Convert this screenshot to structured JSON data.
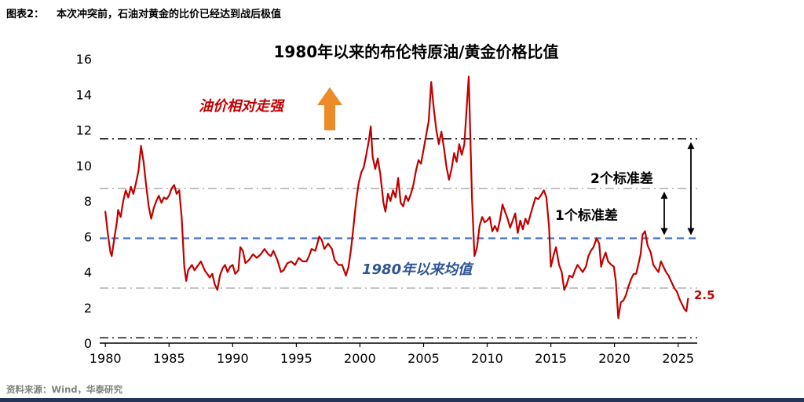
{
  "header": {
    "tag": "图表2：",
    "title": "本次冲突前，石油对黄金的比价已经达到战后极值"
  },
  "footer": {
    "source": "资料来源：Wind，华泰研究"
  },
  "chart_data": {
    "type": "line",
    "title": "1980年以来的布伦特原油/黄金价格比值",
    "xlabel": "",
    "ylabel": "",
    "x_range": [
      1979.8,
      2026.5
    ],
    "y_range": [
      0,
      16
    ],
    "x_ticks": [
      1980,
      1985,
      1990,
      1995,
      2000,
      2005,
      2010,
      2015,
      2020,
      2025
    ],
    "y_ticks": [
      0,
      2,
      4,
      6,
      8,
      10,
      12,
      14,
      16
    ],
    "grid": "off",
    "legend": "off",
    "line_color": "#C00000",
    "reference_lines": [
      {
        "label": "mean",
        "value": 5.9,
        "style": "dashed",
        "color": "#4472C4"
      },
      {
        "label": "+1std",
        "value": 8.7,
        "style": "dashdot",
        "color": "#A6A6A6"
      },
      {
        "label": "-1std",
        "value": 3.1,
        "style": "dashdot",
        "color": "#A6A6A6"
      },
      {
        "label": "+2std",
        "value": 11.5,
        "style": "dashdot",
        "color": "#000000"
      },
      {
        "label": "-2std",
        "value": 0.3,
        "style": "dashdot",
        "color": "#000000"
      }
    ],
    "annotations": {
      "oil_stronger": "油价相对走强",
      "mean_label": "1980年以来均值",
      "two_std": "2个标准差",
      "one_std": "1个标准差",
      "end_value": "2.5"
    },
    "series": [
      {
        "name": "布伦特原油/黄金价格比值",
        "color": "#C00000",
        "points": [
          [
            1980.0,
            7.4
          ],
          [
            1980.2,
            6.1
          ],
          [
            1980.4,
            5.1
          ],
          [
            1980.5,
            4.9
          ],
          [
            1980.7,
            5.9
          ],
          [
            1980.9,
            6.8
          ],
          [
            1981.0,
            7.5
          ],
          [
            1981.2,
            7.1
          ],
          [
            1981.4,
            8.0
          ],
          [
            1981.6,
            8.6
          ],
          [
            1981.8,
            8.2
          ],
          [
            1982.0,
            8.8
          ],
          [
            1982.2,
            8.4
          ],
          [
            1982.4,
            9.0
          ],
          [
            1982.6,
            9.7
          ],
          [
            1982.8,
            11.1
          ],
          [
            1983.0,
            10.2
          ],
          [
            1983.2,
            8.9
          ],
          [
            1983.4,
            7.7
          ],
          [
            1983.6,
            7.0
          ],
          [
            1983.8,
            7.6
          ],
          [
            1984.0,
            8.0
          ],
          [
            1984.2,
            8.3
          ],
          [
            1984.4,
            7.9
          ],
          [
            1984.6,
            8.2
          ],
          [
            1984.8,
            8.1
          ],
          [
            1985.0,
            8.3
          ],
          [
            1985.2,
            8.7
          ],
          [
            1985.4,
            8.9
          ],
          [
            1985.6,
            8.4
          ],
          [
            1985.8,
            8.6
          ],
          [
            1986.0,
            7.0
          ],
          [
            1986.2,
            4.3
          ],
          [
            1986.35,
            3.5
          ],
          [
            1986.5,
            4.1
          ],
          [
            1986.8,
            4.4
          ],
          [
            1987.0,
            4.1
          ],
          [
            1987.2,
            4.3
          ],
          [
            1987.5,
            4.6
          ],
          [
            1987.8,
            4.1
          ],
          [
            1988.0,
            3.9
          ],
          [
            1988.2,
            3.7
          ],
          [
            1988.4,
            3.9
          ],
          [
            1988.6,
            3.3
          ],
          [
            1988.8,
            3.0
          ],
          [
            1989.0,
            3.8
          ],
          [
            1989.2,
            4.2
          ],
          [
            1989.4,
            4.4
          ],
          [
            1989.6,
            4.0
          ],
          [
            1989.8,
            4.3
          ],
          [
            1990.0,
            4.4
          ],
          [
            1990.2,
            3.9
          ],
          [
            1990.45,
            4.1
          ],
          [
            1990.6,
            5.4
          ],
          [
            1990.8,
            5.2
          ],
          [
            1991.0,
            4.5
          ],
          [
            1991.3,
            4.7
          ],
          [
            1991.6,
            5.0
          ],
          [
            1991.9,
            4.8
          ],
          [
            1992.2,
            5.0
          ],
          [
            1992.5,
            5.3
          ],
          [
            1992.8,
            5.0
          ],
          [
            1993.0,
            4.9
          ],
          [
            1993.2,
            5.2
          ],
          [
            1993.5,
            4.7
          ],
          [
            1993.8,
            4.0
          ],
          [
            1994.0,
            4.1
          ],
          [
            1994.3,
            4.5
          ],
          [
            1994.6,
            4.6
          ],
          [
            1994.9,
            4.4
          ],
          [
            1995.2,
            4.8
          ],
          [
            1995.5,
            4.6
          ],
          [
            1995.8,
            4.6
          ],
          [
            1996.0,
            4.9
          ],
          [
            1996.2,
            5.3
          ],
          [
            1996.5,
            5.2
          ],
          [
            1996.8,
            6.0
          ],
          [
            1997.0,
            5.8
          ],
          [
            1997.2,
            5.3
          ],
          [
            1997.5,
            5.6
          ],
          [
            1997.8,
            5.3
          ],
          [
            1998.0,
            4.7
          ],
          [
            1998.3,
            4.4
          ],
          [
            1998.6,
            4.4
          ],
          [
            1998.9,
            3.8
          ],
          [
            1999.1,
            4.3
          ],
          [
            1999.3,
            5.3
          ],
          [
            1999.5,
            6.6
          ],
          [
            1999.7,
            8.0
          ],
          [
            1999.9,
            9.0
          ],
          [
            2000.1,
            9.6
          ],
          [
            2000.3,
            9.9
          ],
          [
            2000.5,
            10.6
          ],
          [
            2000.7,
            11.4
          ],
          [
            2000.85,
            12.2
          ],
          [
            2001.0,
            10.5
          ],
          [
            2001.2,
            9.8
          ],
          [
            2001.4,
            10.4
          ],
          [
            2001.6,
            9.5
          ],
          [
            2001.85,
            7.9
          ],
          [
            2002.0,
            7.4
          ],
          [
            2002.2,
            8.4
          ],
          [
            2002.4,
            8.0
          ],
          [
            2002.6,
            8.6
          ],
          [
            2002.8,
            8.2
          ],
          [
            2003.0,
            9.3
          ],
          [
            2003.2,
            7.9
          ],
          [
            2003.4,
            7.7
          ],
          [
            2003.6,
            8.3
          ],
          [
            2003.8,
            8.0
          ],
          [
            2004.0,
            8.4
          ],
          [
            2004.2,
            8.9
          ],
          [
            2004.4,
            9.7
          ],
          [
            2004.6,
            10.3
          ],
          [
            2004.8,
            10.1
          ],
          [
            2005.0,
            10.9
          ],
          [
            2005.2,
            11.7
          ],
          [
            2005.4,
            12.5
          ],
          [
            2005.6,
            14.7
          ],
          [
            2005.8,
            13.2
          ],
          [
            2006.0,
            12.0
          ],
          [
            2006.2,
            11.2
          ],
          [
            2006.4,
            11.9
          ],
          [
            2006.6,
            11.0
          ],
          [
            2006.8,
            9.9
          ],
          [
            2007.0,
            9.2
          ],
          [
            2007.2,
            9.8
          ],
          [
            2007.4,
            10.7
          ],
          [
            2007.6,
            10.2
          ],
          [
            2007.8,
            11.2
          ],
          [
            2008.0,
            10.6
          ],
          [
            2008.2,
            11.2
          ],
          [
            2008.4,
            13.4
          ],
          [
            2008.55,
            15.0
          ],
          [
            2008.8,
            8.2
          ],
          [
            2009.0,
            4.9
          ],
          [
            2009.2,
            5.4
          ],
          [
            2009.4,
            6.6
          ],
          [
            2009.6,
            7.1
          ],
          [
            2009.8,
            6.8
          ],
          [
            2010.0,
            6.9
          ],
          [
            2010.2,
            7.1
          ],
          [
            2010.4,
            6.3
          ],
          [
            2010.6,
            6.6
          ],
          [
            2010.8,
            6.3
          ],
          [
            2011.0,
            6.9
          ],
          [
            2011.2,
            7.8
          ],
          [
            2011.4,
            7.4
          ],
          [
            2011.6,
            7.0
          ],
          [
            2011.8,
            6.5
          ],
          [
            2012.0,
            6.9
          ],
          [
            2012.2,
            7.3
          ],
          [
            2012.4,
            6.2
          ],
          [
            2012.6,
            6.9
          ],
          [
            2012.8,
            6.4
          ],
          [
            2013.0,
            7.0
          ],
          [
            2013.2,
            6.7
          ],
          [
            2013.5,
            7.5
          ],
          [
            2013.8,
            8.2
          ],
          [
            2014.0,
            8.1
          ],
          [
            2014.2,
            8.3
          ],
          [
            2014.45,
            8.6
          ],
          [
            2014.65,
            8.2
          ],
          [
            2014.85,
            6.6
          ],
          [
            2015.0,
            4.3
          ],
          [
            2015.2,
            4.9
          ],
          [
            2015.4,
            5.4
          ],
          [
            2015.65,
            4.4
          ],
          [
            2015.85,
            4.0
          ],
          [
            2016.05,
            3.0
          ],
          [
            2016.25,
            3.3
          ],
          [
            2016.45,
            3.8
          ],
          [
            2016.7,
            3.7
          ],
          [
            2016.9,
            4.1
          ],
          [
            2017.1,
            4.4
          ],
          [
            2017.3,
            4.2
          ],
          [
            2017.5,
            4.0
          ],
          [
            2017.75,
            4.3
          ],
          [
            2017.95,
            4.9
          ],
          [
            2018.15,
            5.2
          ],
          [
            2018.35,
            5.4
          ],
          [
            2018.6,
            5.9
          ],
          [
            2018.8,
            5.6
          ],
          [
            2018.95,
            4.3
          ],
          [
            2019.1,
            4.7
          ],
          [
            2019.3,
            5.1
          ],
          [
            2019.5,
            4.6
          ],
          [
            2019.75,
            4.4
          ],
          [
            2019.95,
            4.3
          ],
          [
            2020.1,
            3.5
          ],
          [
            2020.3,
            1.4
          ],
          [
            2020.5,
            2.3
          ],
          [
            2020.7,
            2.4
          ],
          [
            2020.9,
            2.7
          ],
          [
            2021.1,
            3.2
          ],
          [
            2021.3,
            3.6
          ],
          [
            2021.5,
            3.9
          ],
          [
            2021.7,
            3.9
          ],
          [
            2021.9,
            4.5
          ],
          [
            2022.05,
            5.0
          ],
          [
            2022.2,
            6.1
          ],
          [
            2022.4,
            6.3
          ],
          [
            2022.6,
            5.5
          ],
          [
            2022.85,
            5.1
          ],
          [
            2023.05,
            4.4
          ],
          [
            2023.25,
            4.2
          ],
          [
            2023.45,
            4.0
          ],
          [
            2023.65,
            4.6
          ],
          [
            2023.85,
            4.3
          ],
          [
            2024.05,
            4.0
          ],
          [
            2024.25,
            3.8
          ],
          [
            2024.5,
            3.4
          ],
          [
            2024.7,
            3.1
          ],
          [
            2024.9,
            2.9
          ],
          [
            2025.1,
            2.5
          ],
          [
            2025.3,
            2.2
          ],
          [
            2025.5,
            1.9
          ],
          [
            2025.65,
            1.8
          ],
          [
            2025.78,
            2.5
          ]
        ]
      }
    ]
  }
}
